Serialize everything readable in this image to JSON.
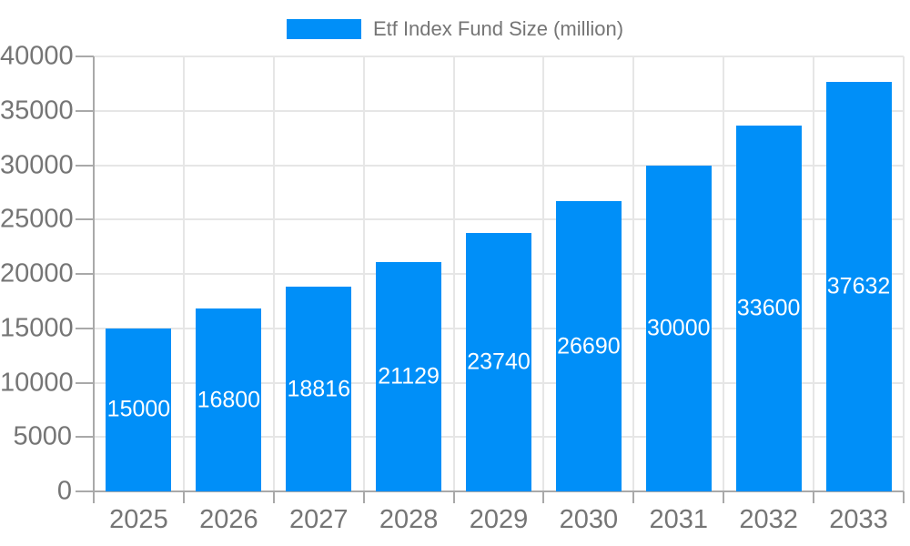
{
  "legend": {
    "label": "Etf Index Fund Size (million)"
  },
  "colors": {
    "bar": "#008ff8",
    "grid": "#e6e6e6",
    "axis": "#a9a9a9",
    "tick_text": "#757575",
    "bar_label_text": "#ffffff",
    "background": "#ffffff"
  },
  "chart_data": {
    "type": "bar",
    "title": "Etf Index Fund Size (million)",
    "series_name": "Etf Index Fund Size (million)",
    "categories": [
      "2025",
      "2026",
      "2027",
      "2028",
      "2029",
      "2030",
      "2031",
      "2032",
      "2033"
    ],
    "values": [
      15000,
      16800,
      18816,
      21129,
      23740,
      26690,
      30000,
      33600,
      37632
    ],
    "bar_value_labels": [
      "15000",
      "16800",
      "18816",
      "21129",
      "23740",
      "26690",
      "30000",
      "33600",
      "37632"
    ],
    "xlabel": "",
    "ylabel": "",
    "ylim": [
      0,
      40000
    ],
    "yticks": [
      0,
      5000,
      10000,
      15000,
      20000,
      25000,
      30000,
      35000,
      40000
    ],
    "grid": true,
    "legend_position": "top"
  }
}
